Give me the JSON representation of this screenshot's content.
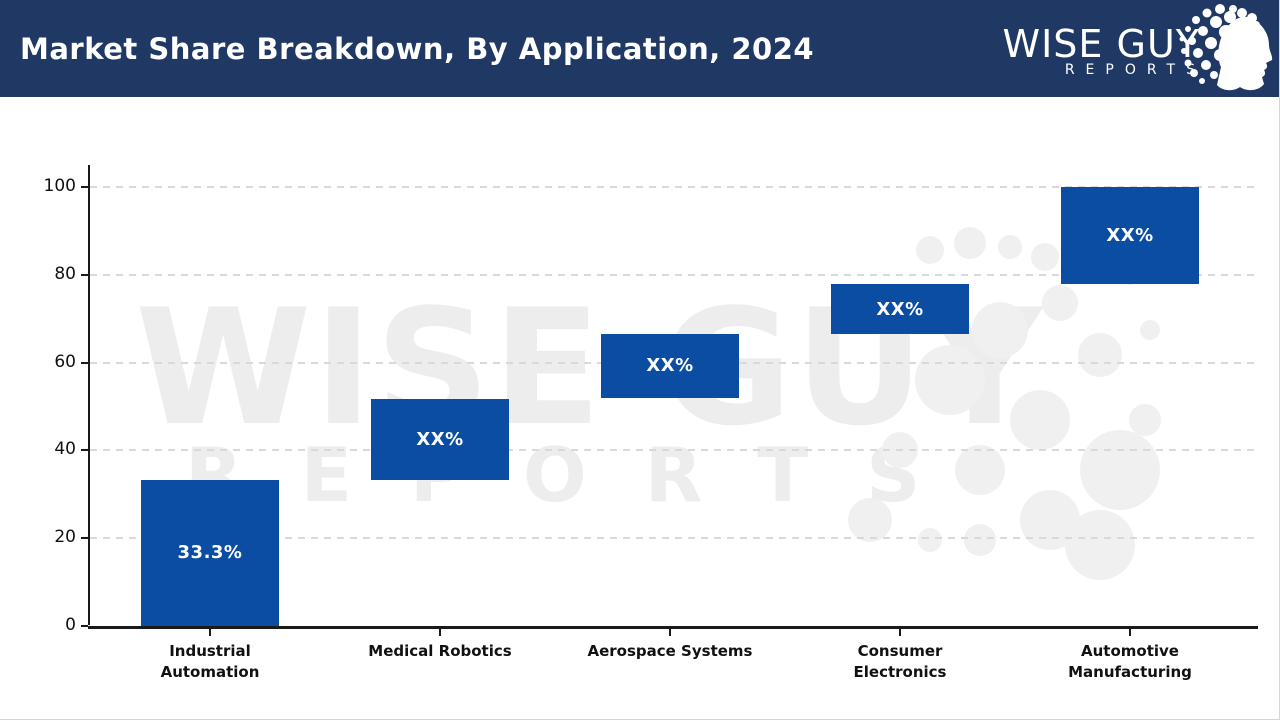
{
  "header": {
    "title": "Market Share Breakdown, By Application, 2024",
    "bg_color": "#1f3864",
    "logo": {
      "wordmark": "WISE GUY",
      "sub": "REPORTS"
    }
  },
  "watermark": {
    "line1": "WISE GUY",
    "line2": "REPORTS"
  },
  "chart_data": {
    "type": "bar",
    "variant": "floating-waterfall",
    "title": "Market Share Breakdown, By Application, 2024",
    "categories": [
      "Industrial Automation",
      "Medical Robotics",
      "Aerospace Systems",
      "Consumer Electronics",
      "Automotive Manufacturing"
    ],
    "segments": [
      {
        "category": "Industrial Automation",
        "start": 0,
        "end": 33.3,
        "value": 33.3,
        "label": "33.3%"
      },
      {
        "category": "Medical Robotics",
        "start": 33.3,
        "end": 51.8,
        "value": 18.5,
        "label": "XX%"
      },
      {
        "category": "Aerospace Systems",
        "start": 51.9,
        "end": 66.6,
        "value": 14.7,
        "label": "XX%"
      },
      {
        "category": "Consumer Electronics",
        "start": 66.6,
        "end": 77.8,
        "value": 11.2,
        "label": "XX%"
      },
      {
        "category": "Automotive Manufacturing",
        "start": 77.8,
        "end": 100,
        "value": 22.2,
        "label": "XX%"
      }
    ],
    "yticks": [
      0,
      20,
      40,
      60,
      80,
      100
    ],
    "ylim": [
      0,
      100
    ],
    "xlabel": "",
    "ylabel": "",
    "grid": "horizontal-dashed",
    "legend": "none",
    "bar_color": "#0b4da2",
    "grid_color": "#d9d9d9",
    "axis_color": "#1a1a1a"
  }
}
